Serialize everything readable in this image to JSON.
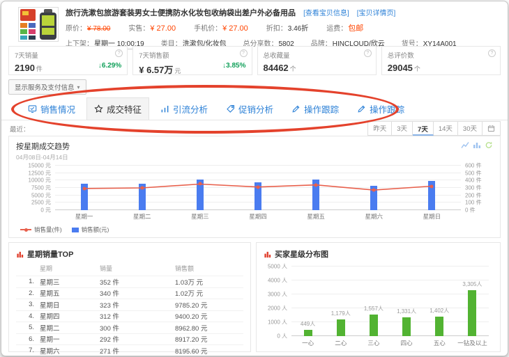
{
  "product": {
    "title": "旅行洗漱包旅游套装男女士便携防水化妆包收纳袋出差户外必备用品",
    "links": [
      "[查看宝贝信息]",
      "[宝贝详情页]"
    ],
    "price_row": [
      {
        "label": "原价：",
        "value": "¥ 78.00",
        "style": "strike"
      },
      {
        "label": "实售：",
        "value": "¥ 27.00",
        "style": "red"
      },
      {
        "label": "手机价：",
        "value": "¥ 27.00",
        "style": "red"
      },
      {
        "label": "折扣：",
        "value": "3.46折",
        "style": "dark"
      },
      {
        "label": "运费：",
        "value": "包邮",
        "style": "red"
      }
    ],
    "meta_row": [
      {
        "label": "上下架：",
        "value": "星期一 10:00:19",
        "underline": true
      },
      {
        "label": "类目：",
        "value": "洗漱包/化妆包",
        "underline": true
      },
      {
        "label": "总分享数：",
        "value": "5802"
      },
      {
        "label": "品牌：",
        "value": "HINCLOUD/欣云"
      },
      {
        "label": "货号：",
        "value": "XY14A001"
      }
    ]
  },
  "stats_cards": [
    {
      "slug": "sales-7d",
      "label": "7天销量",
      "value": "2190",
      "unit": "件",
      "change": "6.29%",
      "direction": "down"
    },
    {
      "slug": "revenue-7d",
      "label": "7天销售额",
      "value": "¥ 6.57万",
      "unit": "元",
      "change": "3.85%",
      "direction": "down"
    },
    {
      "slug": "favorites-total",
      "label": "总收藏量",
      "value": "84462",
      "unit": "个"
    },
    {
      "slug": "reviews-total",
      "label": "总评价数",
      "value": "29045",
      "unit": "个"
    }
  ],
  "service_toggle": "显示服务及支付信息",
  "tabs": [
    {
      "slug": "sales-status",
      "label": "销售情况",
      "icon": "sales-icon",
      "active": false
    },
    {
      "slug": "deal-features",
      "label": "成交特征",
      "icon": "star-icon",
      "active": true
    },
    {
      "slug": "traffic-analysis",
      "label": "引流分析",
      "icon": "traffic-icon",
      "active": false
    },
    {
      "slug": "promo-analysis",
      "label": "促销分析",
      "icon": "promo-icon",
      "active": false
    },
    {
      "slug": "operation-tracking",
      "label": "操作跟踪",
      "icon": "track-icon",
      "active": false
    },
    {
      "slug": "operation-tracking-2",
      "label": "操作跟踪",
      "icon": "track-icon",
      "active": false
    }
  ],
  "recent_label": "最近：",
  "date_filters": {
    "options": [
      "昨天",
      "3天",
      "7天",
      "14天",
      "30天"
    ],
    "active": "7天"
  },
  "icons": {
    "caret_down": "▾",
    "down_arrow": "↓"
  },
  "chart_data": [
    {
      "type": "bar+line",
      "title": "按星期成交趋势",
      "subtitle": "04月08日-04月14日",
      "categories": [
        "星期一",
        "星期二",
        "星期三",
        "星期四",
        "星期五",
        "星期六",
        "星期日"
      ],
      "series": [
        {
          "name": "销售量(件)",
          "type": "line",
          "axis": "right",
          "color": "#e8604c",
          "values": [
            292,
            300,
            352,
            312,
            340,
            271,
            323
          ]
        },
        {
          "name": "销售额(元)",
          "type": "bar",
          "axis": "left",
          "color": "#4a7cf0",
          "values": [
            8917.2,
            8962.8,
            10300,
            9400.2,
            10200,
            8195.6,
            9785.2
          ]
        }
      ],
      "left_axis": {
        "min": 0,
        "max": 15000,
        "step": 2500,
        "unit": "元"
      },
      "right_axis": {
        "min": 0,
        "max": 600,
        "step": 100,
        "unit": "件"
      },
      "legend_position": "bottom-left",
      "grid": true
    },
    {
      "type": "bar",
      "title": "买家星级分布图",
      "categories": [
        "一心",
        "二心",
        "三心",
        "四心",
        "五心",
        "一钻及以上"
      ],
      "values": [
        449,
        1179,
        1557,
        1331,
        1402,
        3305
      ],
      "value_labels": [
        "449人",
        "1,179人",
        "1,557人",
        "1,331人",
        "1,402人",
        "3,305人"
      ],
      "color": "#52b332",
      "y_axis": {
        "min": 0,
        "max": 5000,
        "step": 1000,
        "unit": "人"
      },
      "grid": true
    }
  ],
  "top_table": {
    "title": "星期销量TOP",
    "headers": [
      "星期",
      "销量",
      "销售额"
    ],
    "rows": [
      {
        "rank": "1.",
        "day": "星期三",
        "count": "352 件",
        "amount": "1.03万 元"
      },
      {
        "rank": "2.",
        "day": "星期五",
        "count": "340 件",
        "amount": "1.02万 元"
      },
      {
        "rank": "3.",
        "day": "星期日",
        "count": "323 件",
        "amount": "9785.20 元"
      },
      {
        "rank": "4.",
        "day": "星期四",
        "count": "312 件",
        "amount": "9400.20 元"
      },
      {
        "rank": "5.",
        "day": "星期二",
        "count": "300 件",
        "amount": "8962.80 元"
      },
      {
        "rank": "6.",
        "day": "星期一",
        "count": "292 件",
        "amount": "8917.20 元"
      },
      {
        "rank": "7.",
        "day": "星期六",
        "count": "271 件",
        "amount": "8195.60 元"
      }
    ]
  }
}
